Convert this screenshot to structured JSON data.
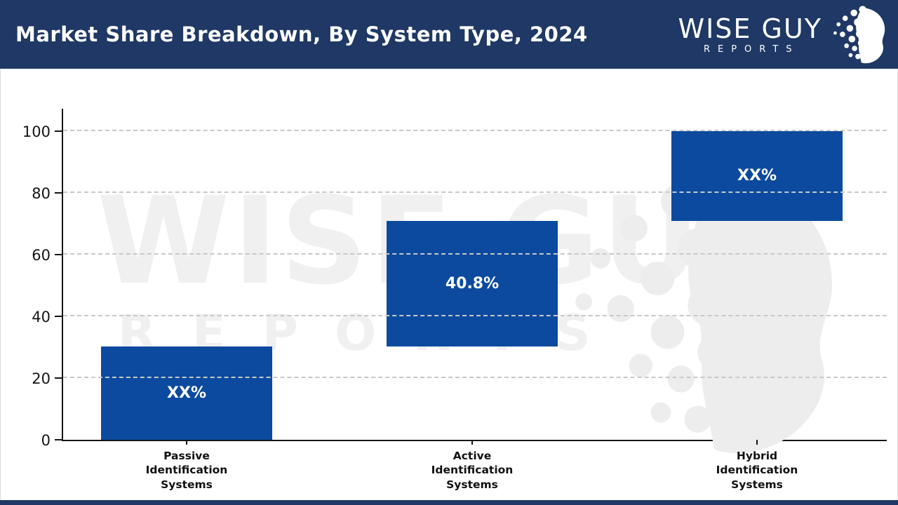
{
  "header": {
    "title": "Market Share Breakdown, By System Type, 2024",
    "logo": {
      "line1": "WISE GUY",
      "line2": "REPORTS"
    }
  },
  "watermark": {
    "line1": "WISE GUY",
    "line2": "REPORTS"
  },
  "colors": {
    "header_bg": "#1f3865",
    "bar": "#0b4a9e",
    "grid": "#c8c8c8",
    "axis": "#151515",
    "value_label": "#ffffff",
    "watermark": "#f0f0f0"
  },
  "chart_data": {
    "type": "bar",
    "subtype": "floating-segment-waterfall",
    "title": "Market Share Breakdown, By System Type, 2024",
    "categories": [
      {
        "lines": [
          "Passive",
          "Identification",
          "Systems"
        ]
      },
      {
        "lines": [
          "Active",
          "Identification",
          "Systems"
        ]
      },
      {
        "lines": [
          "Hybrid",
          "Identification",
          "Systems"
        ]
      }
    ],
    "segments": [
      {
        "start": 0,
        "end": 30.2,
        "label": "XX%"
      },
      {
        "start": 30.2,
        "end": 71.0,
        "label": "40.8%"
      },
      {
        "start": 71.0,
        "end": 100,
        "label": "XX%"
      }
    ],
    "yticks": [
      0,
      20,
      40,
      60,
      80,
      100
    ],
    "ylim": [
      0,
      107
    ],
    "xlabel": "",
    "ylabel": "",
    "grid": "horizontal-dashed",
    "legend": "none"
  }
}
